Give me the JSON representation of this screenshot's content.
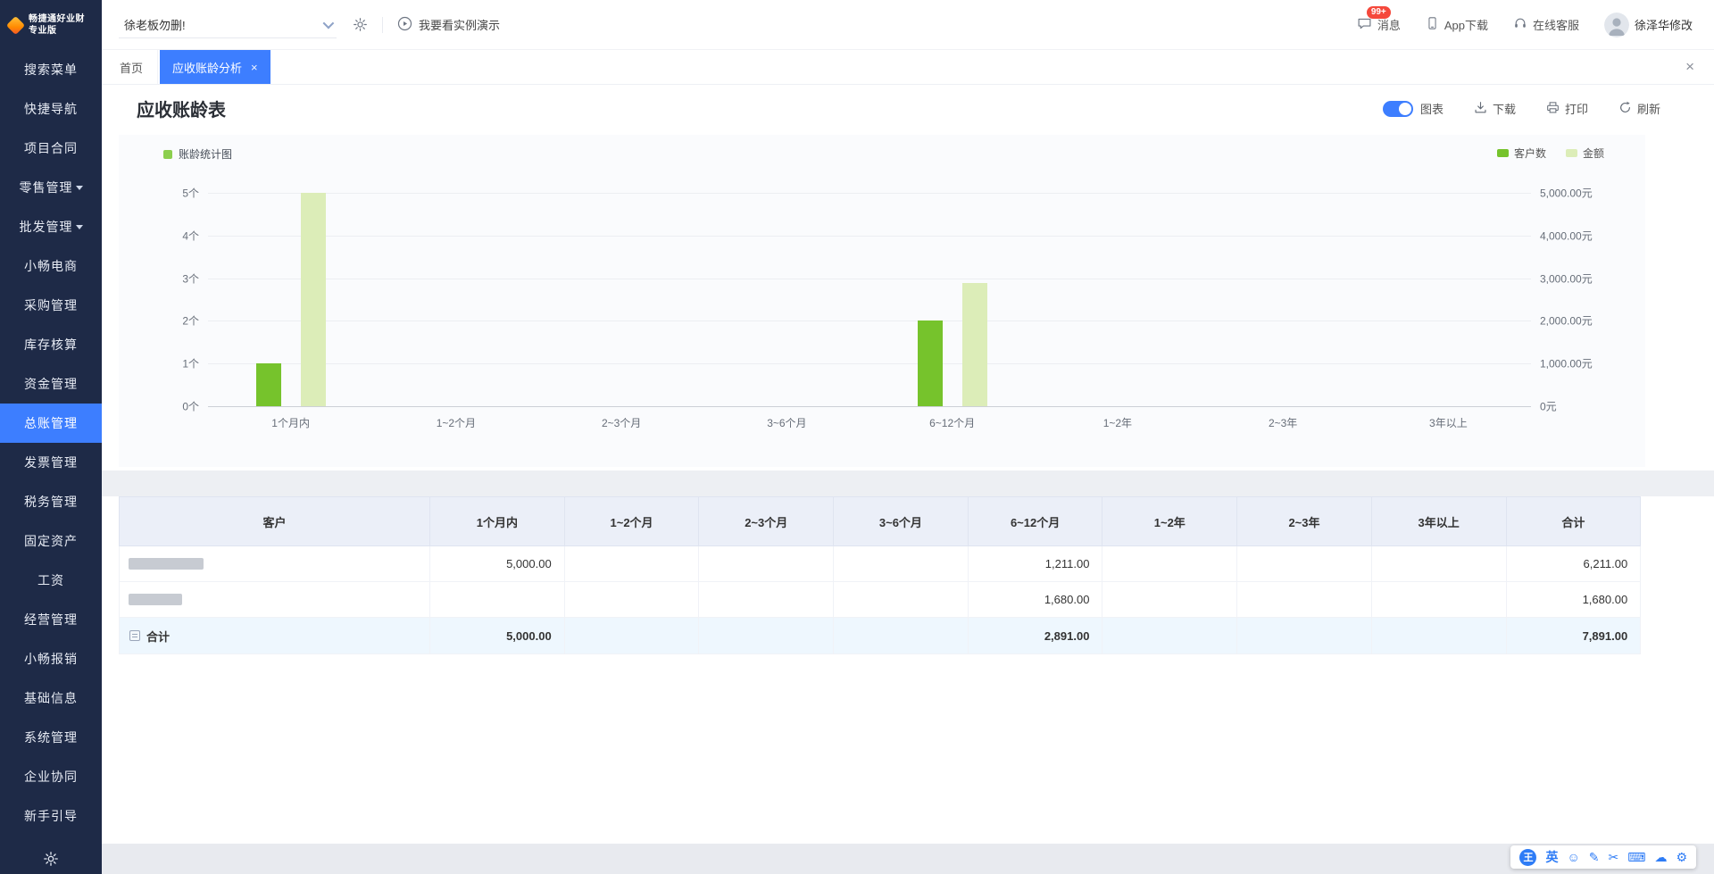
{
  "colors": {
    "sidebar_bg": "#1e2a47",
    "accent_blue": "#3d7eff",
    "customers_green": "#76c32c",
    "amount_green": "#dcedb8",
    "badge_red": "#f5483b",
    "ime_blue": "#2e7cf6"
  },
  "sidebar": {
    "logo": {
      "line1": "畅捷通好业财",
      "line2": "专业版"
    },
    "items": [
      {
        "label": "搜索菜单"
      },
      {
        "label": "快捷导航"
      },
      {
        "label": "项目合同"
      },
      {
        "label": "零售管理",
        "dropdown": true
      },
      {
        "label": "批发管理",
        "dropdown": true
      },
      {
        "label": "小畅电商"
      },
      {
        "label": "采购管理"
      },
      {
        "label": "库存核算"
      },
      {
        "label": "资金管理"
      },
      {
        "label": "总账管理",
        "active": true
      },
      {
        "label": "发票管理"
      },
      {
        "label": "税务管理"
      },
      {
        "label": "固定资产"
      },
      {
        "label": "工资"
      },
      {
        "label": "经营管理"
      },
      {
        "label": "小畅报销"
      },
      {
        "label": "基础信息"
      },
      {
        "label": "系统管理"
      },
      {
        "label": "企业协同"
      },
      {
        "label": "新手引导"
      }
    ]
  },
  "topbar": {
    "company_selector": "徐老板勿删!",
    "demo_link": "我要看实例演示",
    "messages_label": "消息",
    "messages_badge": "99+",
    "app_download_label": "App下载",
    "support_label": "在线客服",
    "username": "徐泽华修改"
  },
  "tabs": {
    "home": "首页",
    "active_tab": "应收账龄分析"
  },
  "page": {
    "title": "应收账龄表",
    "toggle_label": "图表",
    "download_label": "下载",
    "print_label": "打印",
    "refresh_label": "刷新"
  },
  "chart_data": {
    "type": "bar",
    "title": "账龄统计图",
    "categories": [
      "1个月内",
      "1~2个月",
      "2~3个月",
      "3~6个月",
      "6~12个月",
      "1~2年",
      "2~3年",
      "3年以上"
    ],
    "series": [
      {
        "name": "客户数",
        "axis": "left",
        "color": "#76c32c",
        "values": [
          1,
          0,
          0,
          0,
          2,
          0,
          0,
          0
        ]
      },
      {
        "name": "金额",
        "axis": "right",
        "color": "#dcedb8",
        "values": [
          5000,
          0,
          0,
          0,
          2891,
          0,
          0,
          0
        ]
      }
    ],
    "left_axis": {
      "ticks": [
        "5个",
        "4个",
        "3个",
        "2个",
        "1个",
        "0个"
      ],
      "min": 0,
      "max": 5
    },
    "right_axis": {
      "ticks": [
        "5,000.00元",
        "4,000.00元",
        "3,000.00元",
        "2,000.00元",
        "1,000.00元",
        "0元"
      ],
      "min": 0,
      "max": 5000
    },
    "legend_position": "top-right",
    "grid": true
  },
  "table": {
    "headers": [
      "客户",
      "1个月内",
      "1~2个月",
      "2~3个月",
      "3~6个月",
      "6~12个月",
      "1~2年",
      "2~3年",
      "3年以上",
      "合计"
    ],
    "rows": [
      {
        "customer_redacted": true,
        "values": [
          "5,000.00",
          "",
          "",
          "",
          "1,211.00",
          "",
          "",
          "",
          "6,211.00"
        ]
      },
      {
        "customer_redacted": true,
        "values": [
          "",
          "",
          "",
          "",
          "1,680.00",
          "",
          "",
          "",
          "1,680.00"
        ]
      }
    ],
    "total": {
      "label": "合计",
      "values": [
        "5,000.00",
        "",
        "",
        "",
        "2,891.00",
        "",
        "",
        "",
        "7,891.00"
      ]
    }
  },
  "ime": {
    "lang_badge": "王",
    "lang_mode": "英",
    "icons": [
      {
        "name": "emoji-icon",
        "glyph": "☺"
      },
      {
        "name": "pen-icon",
        "glyph": "✎"
      },
      {
        "name": "scissors-icon",
        "glyph": "✂"
      },
      {
        "name": "keyboard-icon",
        "glyph": "⌨"
      },
      {
        "name": "cloud-icon",
        "glyph": "☁"
      },
      {
        "name": "settings-icon",
        "glyph": "⚙"
      }
    ]
  }
}
